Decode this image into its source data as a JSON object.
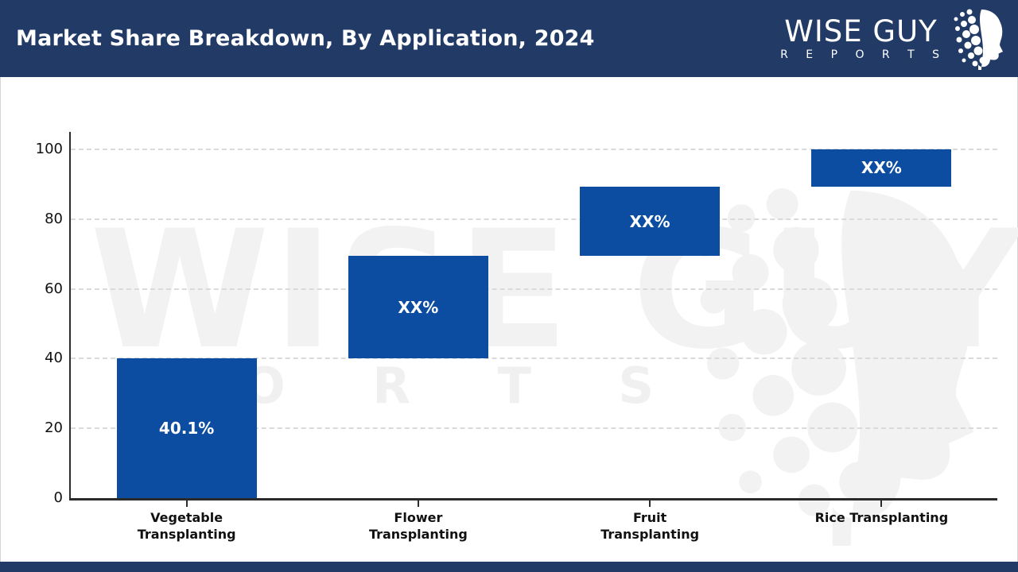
{
  "header": {
    "title": "Market Share Breakdown, By Application, 2024",
    "logo": {
      "line1": "WISE GUY",
      "line2": "R E P O R T S"
    }
  },
  "watermark": {
    "line1": "WISE GUY",
    "line2": "P O R T S"
  },
  "colors": {
    "header_bg": "#213A66",
    "footer_bg": "#213A66",
    "bar_fill": "#0C4DA2",
    "bar_label": "#ffffff",
    "gridline": "#dadada",
    "axis": "#2b2b2b",
    "watermark": "#f2f2f2"
  },
  "chart_data": {
    "type": "bar",
    "subtype": "waterfall",
    "title": "Market Share Breakdown, By Application, 2024",
    "xlabel": "",
    "ylabel": "",
    "ylim": [
      0,
      105
    ],
    "yticks": [
      0,
      20,
      40,
      60,
      80,
      100
    ],
    "grid": "horizontal-dashed",
    "legend": "none",
    "categories": [
      "Vegetable Transplanting",
      "Flower Transplanting",
      "Fruit Transplanting",
      "Rice Transplanting"
    ],
    "category_label_lines": [
      [
        "Vegetable",
        "Transplanting"
      ],
      [
        "Flower",
        "Transplanting"
      ],
      [
        "Fruit",
        "Transplanting"
      ],
      [
        "Rice Transplanting"
      ]
    ],
    "segments": [
      {
        "category": "Vegetable Transplanting",
        "start": 0,
        "end": 40.1,
        "value": 40.1,
        "label": "40.1%"
      },
      {
        "category": "Flower Transplanting",
        "start": 40.1,
        "end": 69.4,
        "value": 29.3,
        "label": "XX%"
      },
      {
        "category": "Fruit Transplanting",
        "start": 69.4,
        "end": 89.3,
        "value": 19.9,
        "label": "XX%"
      },
      {
        "category": "Rice Transplanting",
        "start": 89.3,
        "end": 100,
        "value": 10.7,
        "label": "XX%"
      }
    ]
  }
}
